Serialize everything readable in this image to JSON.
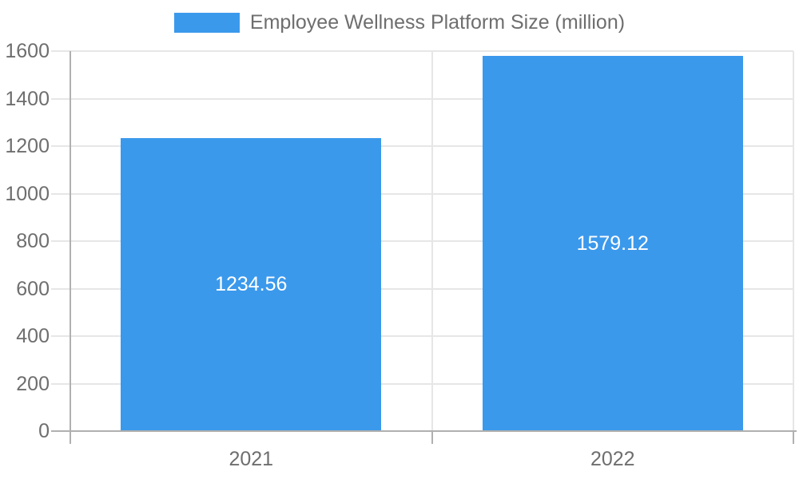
{
  "chart_data": {
    "type": "bar",
    "title": "Employee Wellness Platform Size (million)",
    "categories": [
      "2021",
      "2022"
    ],
    "series": [
      {
        "name": "Employee Wellness Platform Size (million)",
        "values": [
          1234.56,
          1579.12
        ]
      }
    ],
    "value_labels": [
      "1234.56",
      "1579.12"
    ],
    "ylim": [
      0,
      1600
    ],
    "yticks": [
      "0",
      "200",
      "400",
      "600",
      "800",
      "1000",
      "1200",
      "1400",
      "1600"
    ],
    "grid": true,
    "legend_position": "top",
    "colors": {
      "bar": "#3B99EC",
      "grid": "#E6E6E6",
      "axis": "#B0B0B0",
      "text": "#6E6E6E",
      "bar_label": "#FFFFFF",
      "background": "#FFFFFF"
    }
  }
}
